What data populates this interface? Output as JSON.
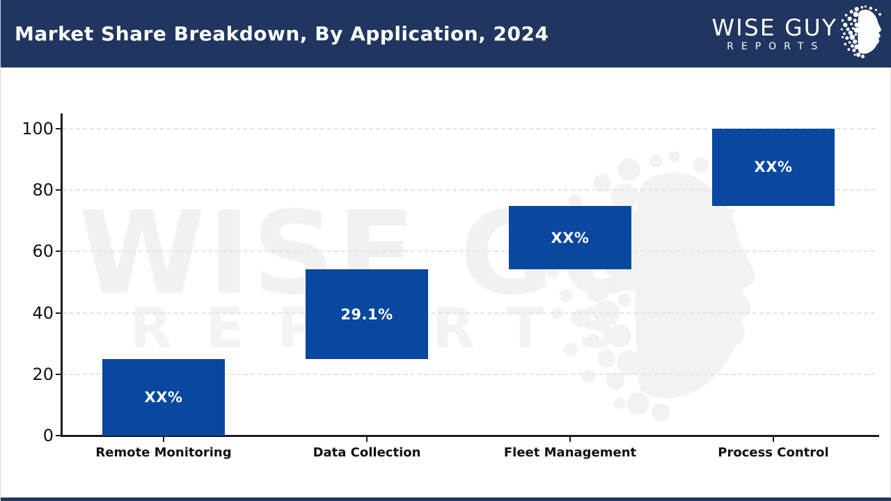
{
  "header": {
    "title": "Market Share Breakdown, By Application, 2024",
    "logo": {
      "line1": "WISE GUY",
      "line2": "REPORTS"
    }
  },
  "watermark": {
    "line1": "WISE GUY",
    "line2": "REPORTS"
  },
  "colors": {
    "header_bg": "#20355f",
    "bar": "#0a479e",
    "grid": "#e3e3e3",
    "axis": "#1c1c1c",
    "bar_label_text": "#ffffff"
  },
  "chart_data": {
    "type": "bar",
    "subtype": "floating_waterfall_bars",
    "title": "Market Share Breakdown, By Application, 2024",
    "categories": [
      "Remote Monitoring",
      "Data Collection",
      "Fleet Management",
      "Process Control"
    ],
    "bars": [
      {
        "category": "Remote Monitoring",
        "from": 0,
        "to": 25,
        "label": "XX%"
      },
      {
        "category": "Data Collection",
        "from": 25,
        "to": 54.1,
        "label": "29.1%"
      },
      {
        "category": "Fleet Management",
        "from": 54.1,
        "to": 74.9,
        "label": "XX%"
      },
      {
        "category": "Process Control",
        "from": 74.9,
        "to": 100,
        "label": "XX%"
      }
    ],
    "xlabel": "",
    "ylabel": "",
    "yticks": [
      0,
      20,
      40,
      60,
      80,
      100
    ],
    "ylim": [
      0,
      105
    ],
    "grid": "horizontal-dashed",
    "legend": "none",
    "bar_color": "#0a479e"
  }
}
